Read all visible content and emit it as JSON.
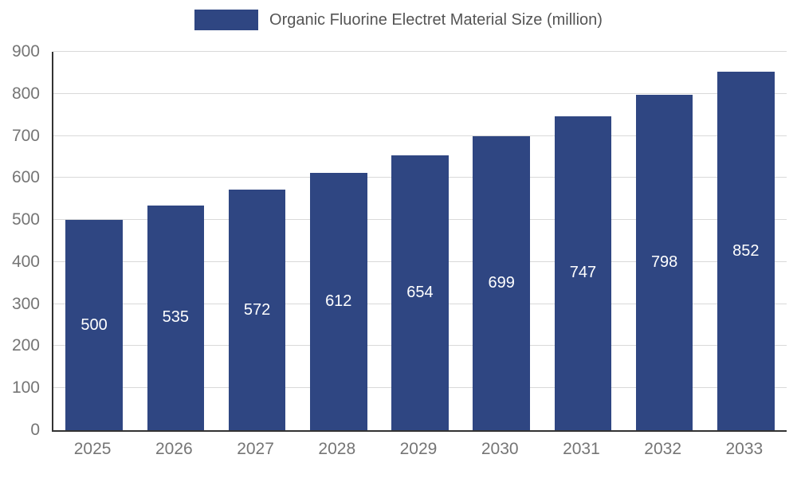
{
  "chart_data": {
    "type": "bar",
    "title": "Organic Fluorine Electret Material Size (million)",
    "categories": [
      "2025",
      "2026",
      "2027",
      "2028",
      "2029",
      "2030",
      "2031",
      "2032",
      "2033"
    ],
    "values": [
      500,
      535,
      572,
      612,
      654,
      699,
      747,
      798,
      852
    ],
    "xlabel": "",
    "ylabel": "",
    "ylim": [
      0,
      900
    ],
    "ytick_step": 100,
    "yticks": [
      0,
      100,
      200,
      300,
      400,
      500,
      600,
      700,
      800,
      900
    ],
    "grid": "horizontal",
    "legend_position": "top-center",
    "bar_color": "#2F4682",
    "value_label_color": "#ffffff",
    "axis_color": "#333333",
    "tick_label_color": "#757575",
    "gridline_color": "#d9d9d9"
  }
}
